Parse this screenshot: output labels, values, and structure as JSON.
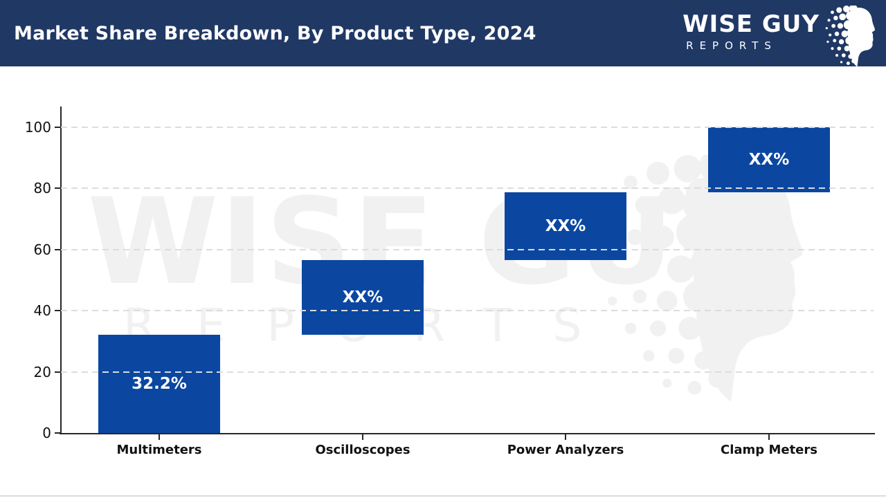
{
  "header": {
    "title": "Market Share Breakdown, By Product Type, 2024",
    "logo": {
      "line1": "WISE GUY",
      "line2": "REPORTS"
    }
  },
  "watermark": {
    "line1": "WISE GUY",
    "line2": "REPORTS"
  },
  "colors": {
    "header_bg": "#203864",
    "bar": "#0B47A1",
    "axis": "#262626",
    "grid": "#DCDCDC",
    "watermark": "#F1F1F2",
    "bottom_line": "#DCDCDC"
  },
  "chart_data": {
    "type": "bar",
    "subtype": "waterfall",
    "title": "Market Share Breakdown, By Product Type, 2024",
    "categories": [
      "Multimeters",
      "Oscilloscopes",
      "Power Analyzers",
      "Clamp Meters"
    ],
    "segments": [
      {
        "category": "Multimeters",
        "start": 0,
        "end": 32.2,
        "label": "32.2%"
      },
      {
        "category": "Oscilloscopes",
        "start": 32.2,
        "end": 56.6,
        "label": "XX%"
      },
      {
        "category": "Power Analyzers",
        "start": 56.6,
        "end": 78.8,
        "label": "XX%"
      },
      {
        "category": "Clamp Meters",
        "start": 78.8,
        "end": 100,
        "label": "XX%"
      }
    ],
    "values_shown": [
      "32.2%",
      "XX%",
      "XX%",
      "XX%"
    ],
    "ylim": [
      0,
      100
    ],
    "yticks": [
      0,
      20,
      40,
      60,
      80,
      100
    ],
    "grid": "horizontal-dashed",
    "legend": "none",
    "bar_color": "#0B47A1"
  }
}
